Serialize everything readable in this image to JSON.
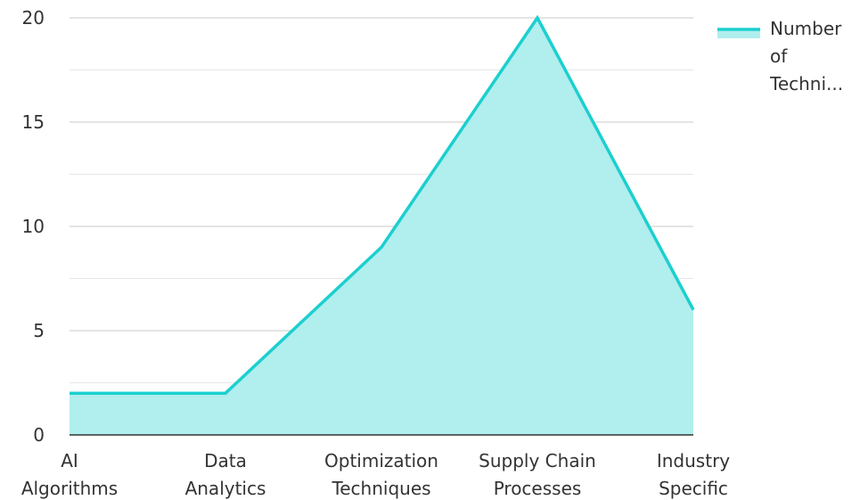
{
  "chart_data": {
    "type": "area",
    "categories": [
      [
        "AI",
        "Algorithms"
      ],
      [
        "Data",
        "Analytics"
      ],
      [
        "Optimization",
        "Techniques"
      ],
      [
        "Supply Chain",
        "Processes"
      ],
      [
        "Industry",
        "Specific"
      ]
    ],
    "series": [
      {
        "name": "Number of Techni...",
        "values": [
          2,
          2,
          9,
          20,
          6
        ],
        "color": "#1ccfcf",
        "fill_color": "#b1eeee"
      }
    ],
    "y_ticks": [
      0,
      5,
      10,
      15,
      20
    ],
    "ylim": [
      0,
      20
    ],
    "grid": true,
    "legend": {
      "position": "top-right",
      "lines": [
        "Number",
        "of",
        "Techni..."
      ]
    }
  }
}
